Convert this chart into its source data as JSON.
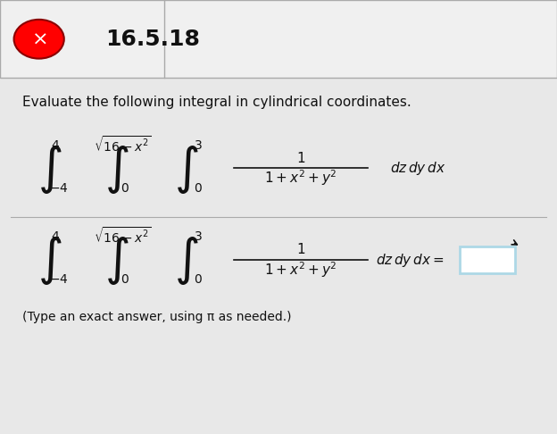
{
  "title_number": "16.5.18",
  "instruction": "Evaluate the following integral in cylindrical coordinates.",
  "bg_color": "#e8e8e8",
  "header_bg": "#f0f0f0",
  "text_color": "#111111",
  "answer_box_color": "#add8e6",
  "footer_note": "(Type an exact answer, using π as needed.)"
}
